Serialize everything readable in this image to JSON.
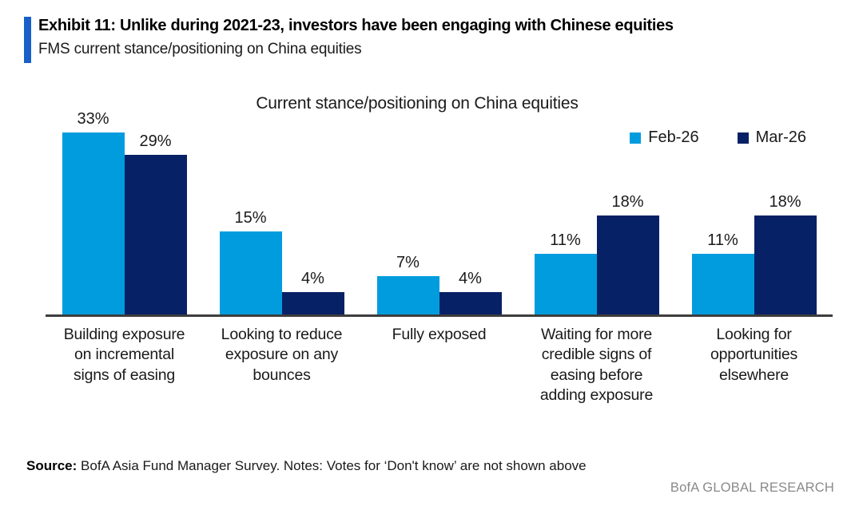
{
  "header": {
    "exhibit_title": "Exhibit 11: Unlike during 2021-23, investors have been engaging with Chinese equities",
    "exhibit_subtitle": "FMS current stance/positioning on China equities",
    "accent_color": "#1860C8"
  },
  "chart_data": {
    "type": "bar",
    "title": "Current stance/positioning on China equities",
    "categories": [
      "Building exposure\non incremental\nsigns of easing",
      "Looking to reduce\nexposure on any\nbounces",
      "Fully exposed",
      "Waiting for more\ncredible signs of\neasing before\nadding exposure",
      "Looking for\nopportunities\nelsewhere"
    ],
    "series": [
      {
        "name": "Feb-26",
        "color": "#009CDE",
        "values": [
          33,
          15,
          7,
          11,
          11
        ]
      },
      {
        "name": "Mar-26",
        "color": "#072166",
        "values": [
          29,
          4,
          4,
          18,
          18
        ]
      }
    ],
    "value_suffix": "%",
    "ylim": [
      0,
      35
    ],
    "grid": false,
    "legend_position": "top-right",
    "axis_color": "#3d3d3d",
    "data_labels": true
  },
  "footer": {
    "source_label": "Source:",
    "source_text": " BofA Asia Fund Manager Survey. Notes: Votes for ‘Don't know’ are not shown above",
    "brand": "BofA GLOBAL RESEARCH"
  }
}
